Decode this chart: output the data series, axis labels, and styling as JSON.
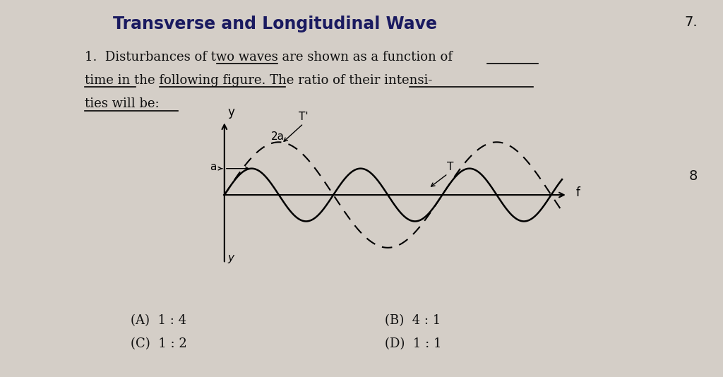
{
  "title": "Transverse and Longitudinal Wave",
  "question_number": "7.",
  "side_number": "8",
  "bg_color": "#d4cec7",
  "text_color": "#111111",
  "title_color": "#1a1a60",
  "options": [
    "(A)  1 : 4",
    "(B)  4 : 1",
    "(C)  1 : 2",
    "(D)  1 : 1"
  ],
  "wave1_amplitude": 1.0,
  "wave2_amplitude": 2.0,
  "wave1_period": 2.0,
  "wave2_period": 4.0,
  "diagram_xlim": [
    -1.0,
    6.5
  ],
  "diagram_ylim": [
    -2.8,
    2.8
  ]
}
